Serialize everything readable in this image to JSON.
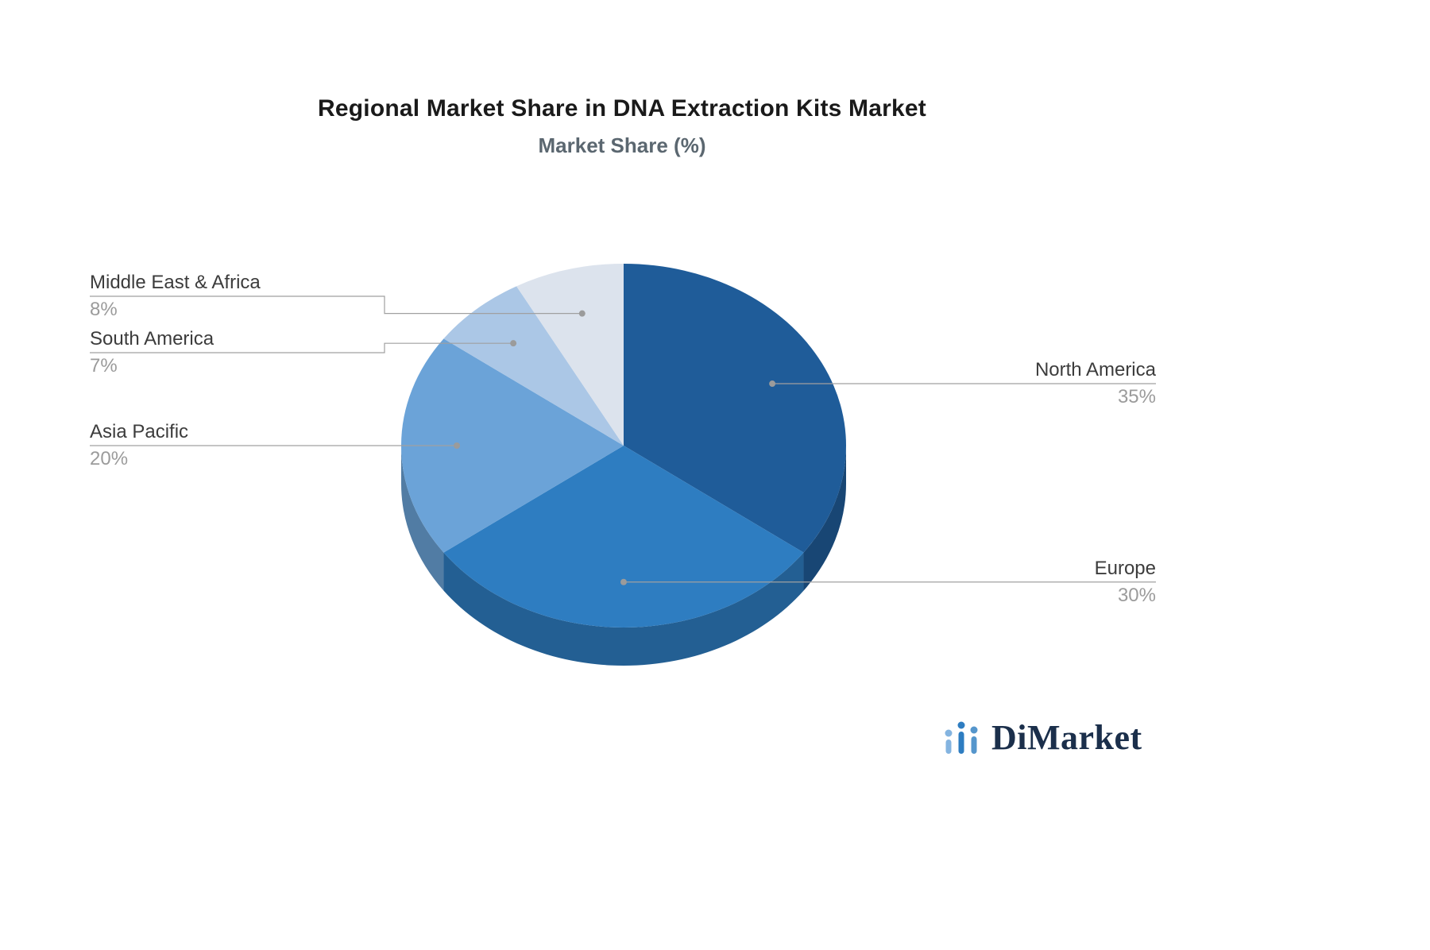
{
  "page": {
    "title": "Regional Market Share in DNA Extraction Kits Market",
    "subtitle": "Market Share (%)"
  },
  "chart_data": {
    "type": "pie",
    "title": "Regional Market Share in DNA Extraction Kits Market",
    "subtitle": "Market Share (%)",
    "unit": "%",
    "effect": "3d",
    "start_angle_deg": -90,
    "direction": "clockwise",
    "legend_position": "callout-labels",
    "slices": [
      {
        "label": "North America",
        "value": 35,
        "pct_label": "35%",
        "color": "#1F5C99"
      },
      {
        "label": "Europe",
        "value": 30,
        "pct_label": "30%",
        "color": "#2E7DC1"
      },
      {
        "label": "Asia Pacific",
        "value": 20,
        "pct_label": "20%",
        "color": "#6BA3D8"
      },
      {
        "label": "South America",
        "value": 7,
        "pct_label": "7%",
        "color": "#ABC7E6"
      },
      {
        "label": "Middle East & Africa",
        "value": 8,
        "pct_label": "8%",
        "color": "#DCE3ED"
      }
    ]
  },
  "branding": {
    "logo_text": "DiMarket",
    "logo_color": "#1B2F4B",
    "icon_colors": [
      "#84B4E0",
      "#2E7DC1",
      "#5596CC"
    ]
  },
  "style": {
    "title_color": "#1A1A1A",
    "subtitle_color": "#5B6770",
    "label_color": "#3C3C3C",
    "value_color": "#9B9B9B",
    "line_color": "#A0A0A0",
    "background": "#FFFFFF"
  }
}
